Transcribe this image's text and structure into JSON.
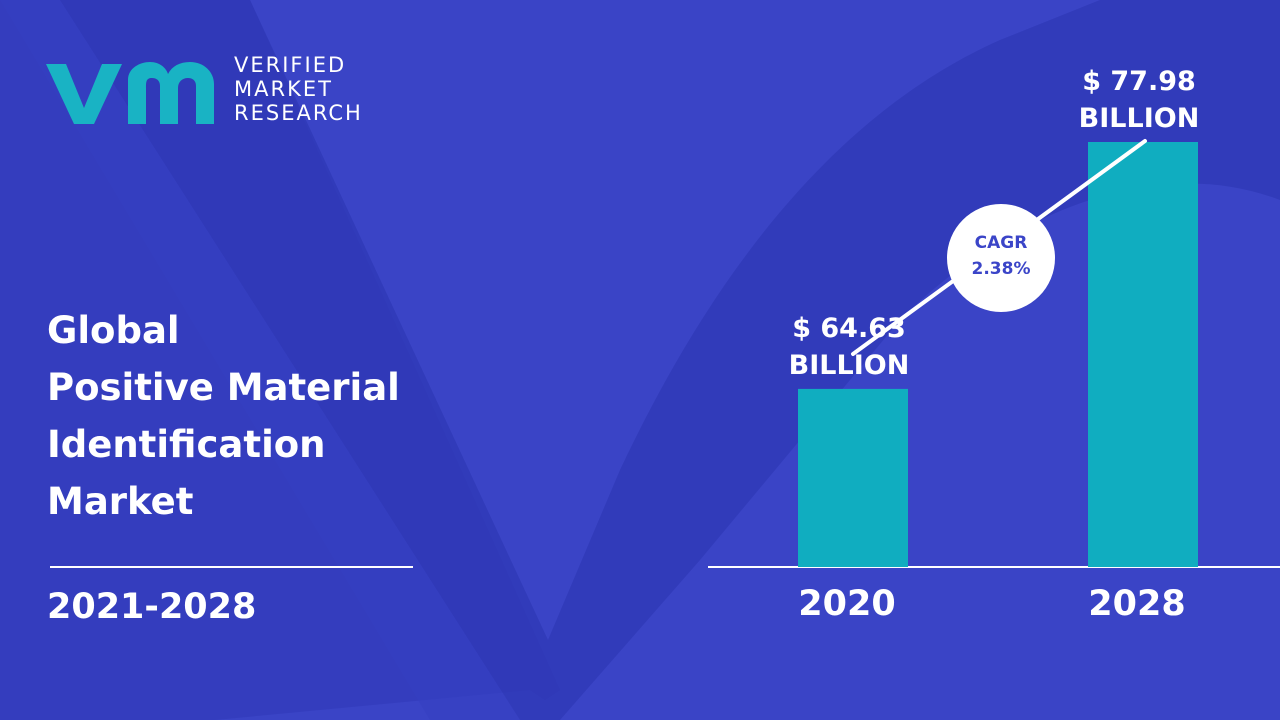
{
  "logo": {
    "line1": "VERIFIED",
    "line2": "MARKET",
    "line3": "RESEARCH",
    "icon": "vmr-logo-icon",
    "color": "#19b3c4"
  },
  "title": {
    "line1": "Global",
    "line2": "Positive Material",
    "line3": "Identification",
    "line4": "Market"
  },
  "period": "2021-2028",
  "colors": {
    "background": "#3a44c6",
    "bar": "#10adc0",
    "text": "#ffffff",
    "cagr_text": "#3b45c8"
  },
  "chart_data": {
    "type": "bar",
    "categories": [
      "2020",
      "2028"
    ],
    "values": [
      64.63,
      77.98
    ],
    "value_labels": [
      [
        "$ 64.63",
        "BILLION"
      ],
      [
        "$ 77.98",
        "BILLION"
      ]
    ],
    "unit": "BILLION",
    "title": "",
    "xlabel": "",
    "ylabel": "",
    "cagr": {
      "label": "CAGR",
      "value": "2.38%"
    }
  }
}
